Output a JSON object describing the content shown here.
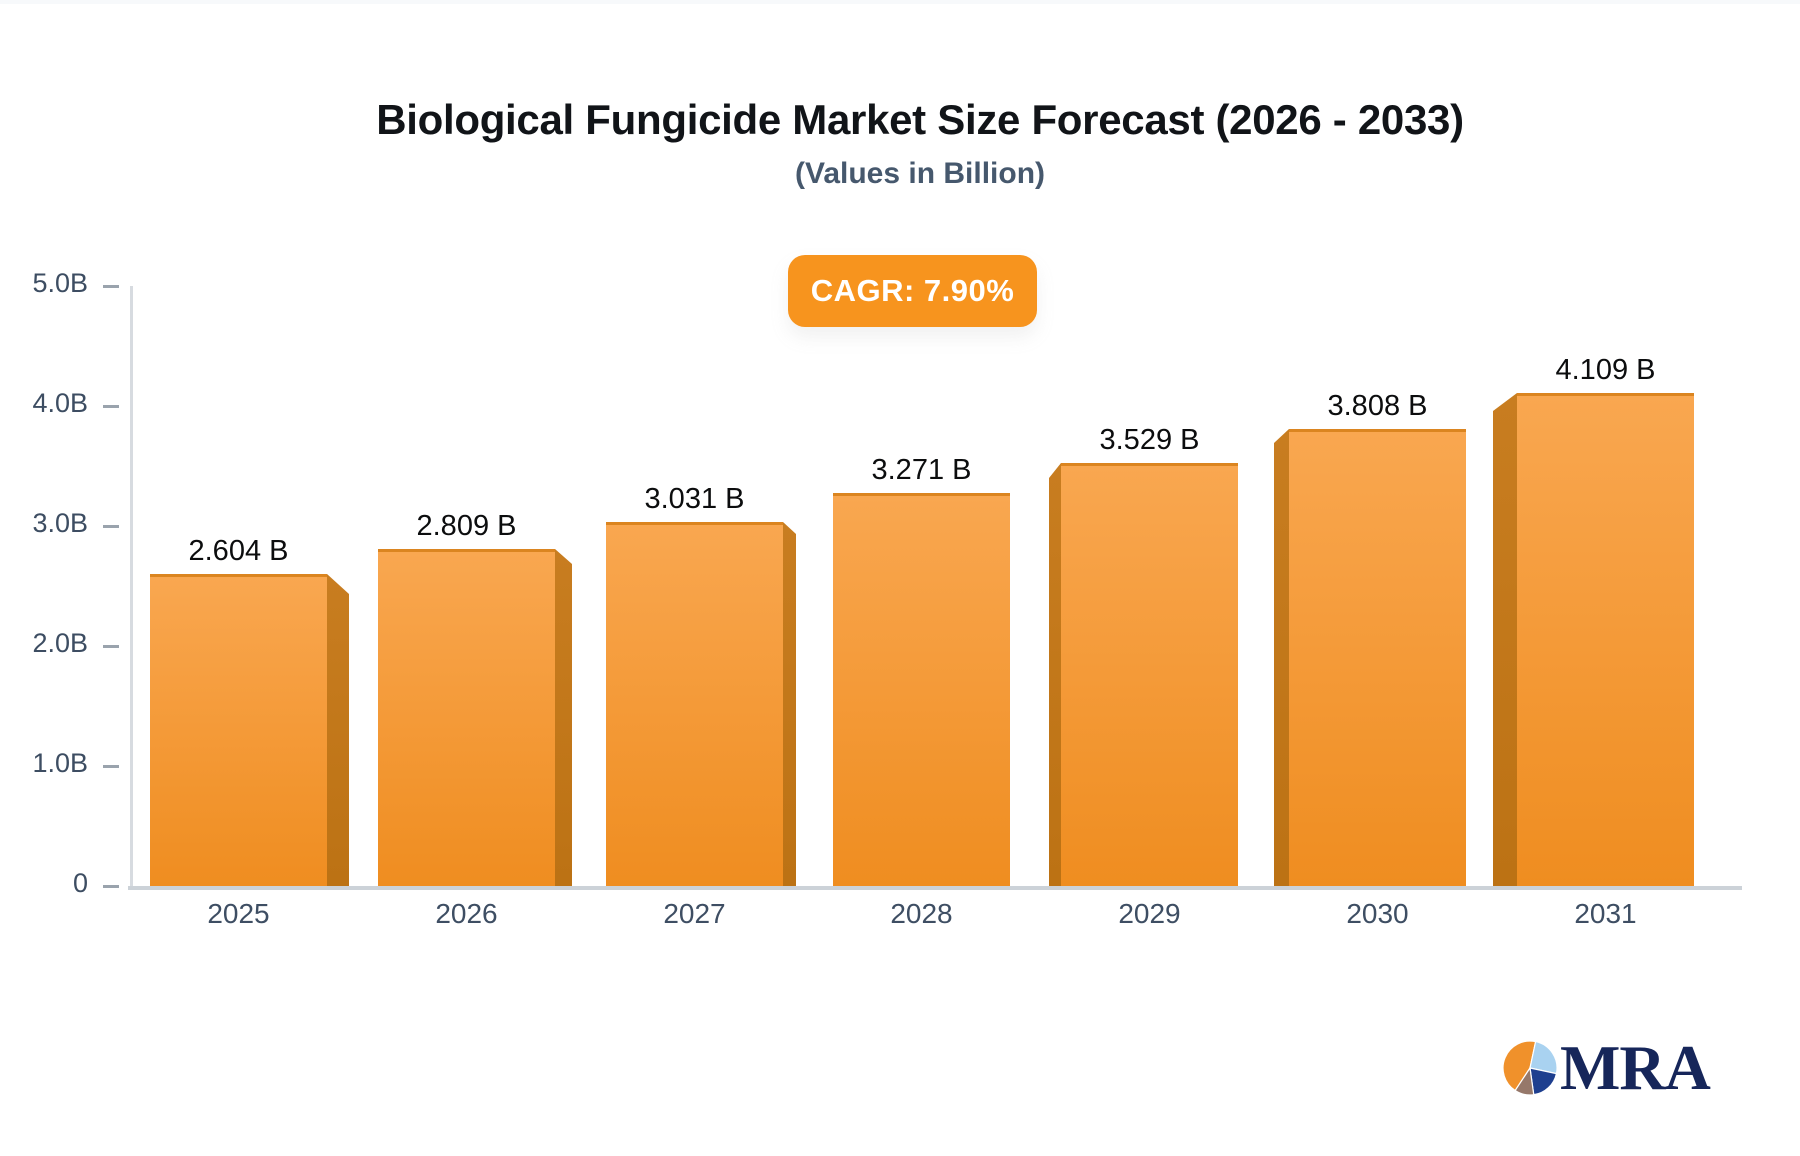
{
  "header": {
    "title": "Biological Fungicide Market Size Forecast (2026 - 2033)",
    "subtitle": "(Values in Billion)"
  },
  "badge": {
    "label": "CAGR: 7.90%",
    "background": "#F7941E",
    "text_color": "#ffffff"
  },
  "chart_data": {
    "type": "bar",
    "title": "Biological Fungicide Market Size Forecast (2026 - 2033)",
    "subtitle": "(Values in Billion)",
    "categories": [
      "2025",
      "2026",
      "2027",
      "2028",
      "2029",
      "2030",
      "2031"
    ],
    "values": [
      2.604,
      2.809,
      3.031,
      3.271,
      3.529,
      3.808,
      4.109
    ],
    "value_labels": [
      "2.604 B",
      "2.809 B",
      "3.031 B",
      "3.271 B",
      "3.529 B",
      "3.808 B",
      "4.109 B"
    ],
    "y_ticks": [
      "0",
      "1.0B",
      "2.0B",
      "3.0B",
      "4.0B",
      "5.0B"
    ],
    "ylim": [
      0,
      5
    ],
    "grid": false,
    "legend": false,
    "annotation": "CAGR: 7.90%",
    "bar_face_color_top": "#F9A750",
    "bar_face_color_bottom": "#EF8D20",
    "bar_side_color": "#C4781A"
  },
  "logo": {
    "text": "MRA",
    "pie_slice_colors": {
      "orange": "#F0912B",
      "light_blue": "#A9D2F0",
      "navy": "#1E3F8F",
      "brown": "#96786A"
    }
  }
}
